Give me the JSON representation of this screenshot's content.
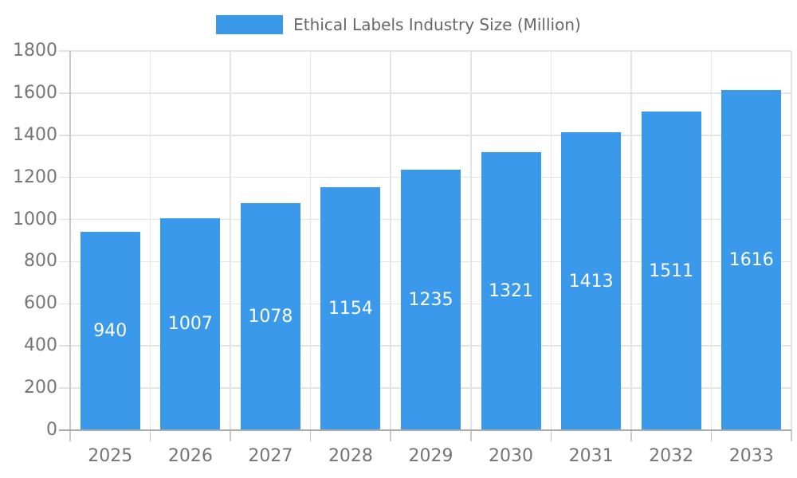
{
  "legend": {
    "label": "Ethical Labels Industry Size (Million)"
  },
  "chart_data": {
    "type": "bar",
    "title": "Ethical Labels Industry Size (Million)",
    "categories": [
      "2025",
      "2026",
      "2027",
      "2028",
      "2029",
      "2030",
      "2031",
      "2032",
      "2033"
    ],
    "series": [
      {
        "name": "Ethical Labels Industry Size (Million)",
        "values": [
          940,
          1007,
          1078,
          1154,
          1235,
          1321,
          1413,
          1511,
          1616
        ]
      }
    ],
    "bar_value_labels": [
      "940",
      "1007",
      "1078",
      "1154",
      "1235",
      "1321",
      "1413",
      "1511",
      "1616"
    ],
    "xlabel": "",
    "ylabel": "",
    "ylim": [
      0,
      1800
    ],
    "yticks": [
      0,
      200,
      400,
      600,
      800,
      1000,
      1200,
      1400,
      1600,
      1800
    ],
    "grid": true,
    "legend_position": "top",
    "colors": {
      "bar": "#3B99EC",
      "bar_label": "#FFFFFF",
      "grid": "#E4E4E4",
      "y_tick": "#E0E0E0",
      "x_tick": "#C9C9C9",
      "axis_x_line": "#ABABAB",
      "axis_y_line": "#C9C9C9",
      "tick_label": "#757575",
      "legend_text": "#666666",
      "background": "#FFFFFF"
    }
  }
}
